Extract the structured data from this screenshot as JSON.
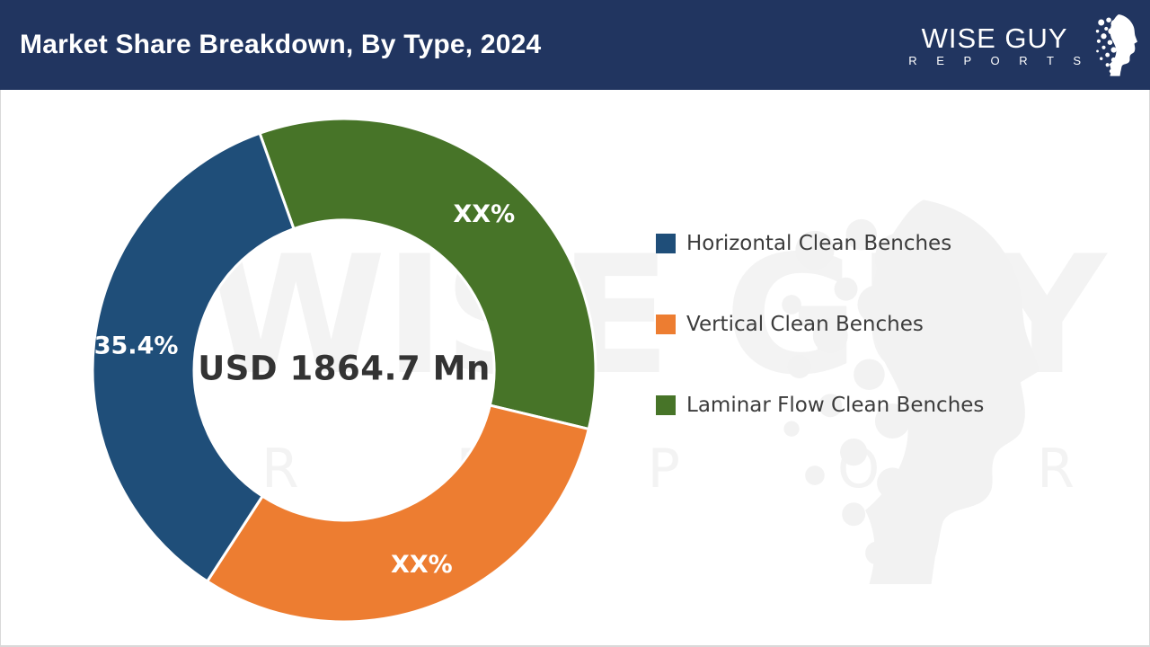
{
  "header": {
    "title": "Market Share Breakdown, By Type, 2024",
    "bg_color": "#213560",
    "logo_line1": "WISE GUY",
    "logo_line2": "R E P O R T S"
  },
  "watermark": {
    "line1": "WISE GUY",
    "line2": "R E P O R T S"
  },
  "chart_data": {
    "type": "pie",
    "subtype": "donut",
    "title": "Market Share Breakdown, By Type, 2024",
    "center_label": "USD 1864.7 Mn",
    "start_angle_deg": -19.6,
    "segments": [
      {
        "name": "Laminar Flow Clean Benches",
        "display_value": "XX%",
        "sweep_pct": 34.2,
        "color": "#477428"
      },
      {
        "name": "Vertical Clean Benches",
        "display_value": "XX%",
        "sweep_pct": 30.4,
        "color": "#ed7d31"
      },
      {
        "name": "Horizontal Clean Benches",
        "display_value": "35.4%",
        "sweep_pct": 35.4,
        "color": "#1f4e79"
      }
    ],
    "legend": [
      {
        "label": "Horizontal Clean Benches",
        "color": "#1f4e79"
      },
      {
        "label": "Vertical Clean Benches",
        "color": "#ed7d31"
      },
      {
        "label": "Laminar Flow Clean Benches",
        "color": "#477428"
      }
    ],
    "legend_position": "right",
    "grid": false
  }
}
